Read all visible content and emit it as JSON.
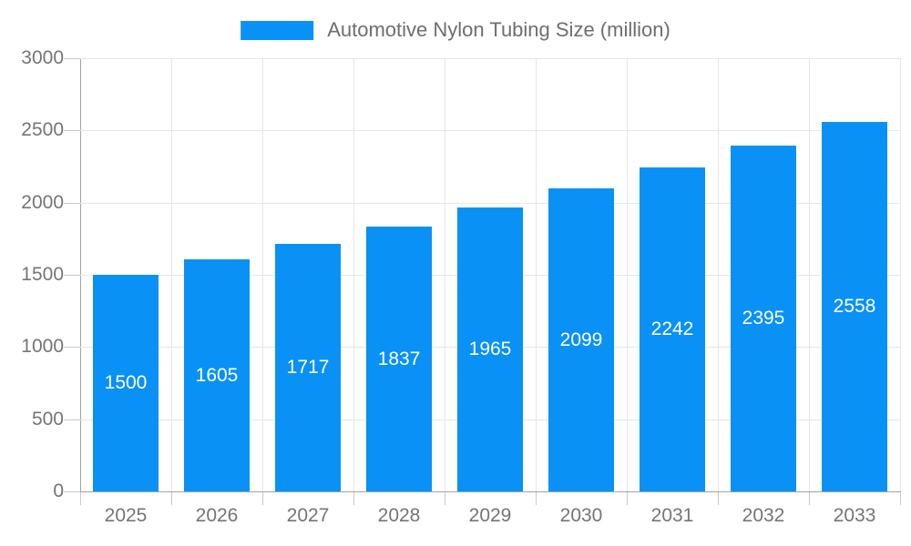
{
  "chart_data": {
    "type": "bar",
    "title": "Automotive Nylon Tubing Size (million)",
    "series_name": "Automotive Nylon Tubing Size (million)",
    "categories": [
      "2025",
      "2026",
      "2027",
      "2028",
      "2029",
      "2030",
      "2031",
      "2032",
      "2033"
    ],
    "values": [
      1500,
      1605,
      1717,
      1837,
      1965,
      2099,
      2242,
      2395,
      2558
    ],
    "xlabel": "",
    "ylabel": "",
    "ylim": [
      0,
      3000
    ],
    "yticks": [
      0,
      500,
      1000,
      1500,
      2000,
      2500,
      3000
    ],
    "grid": true,
    "legend_position": "top-center",
    "value_labels": "centered-inside-bars",
    "colors": {
      "bar": "#0991f6",
      "bar_value_label": "#ffffff",
      "tick_label": "#757575",
      "legend_text": "#6e6e6e",
      "gridline": "#e6e6e6",
      "axis_line": "#a3a3a3",
      "tick_mark": "#c9c9c9",
      "background": "#ffffff"
    }
  }
}
